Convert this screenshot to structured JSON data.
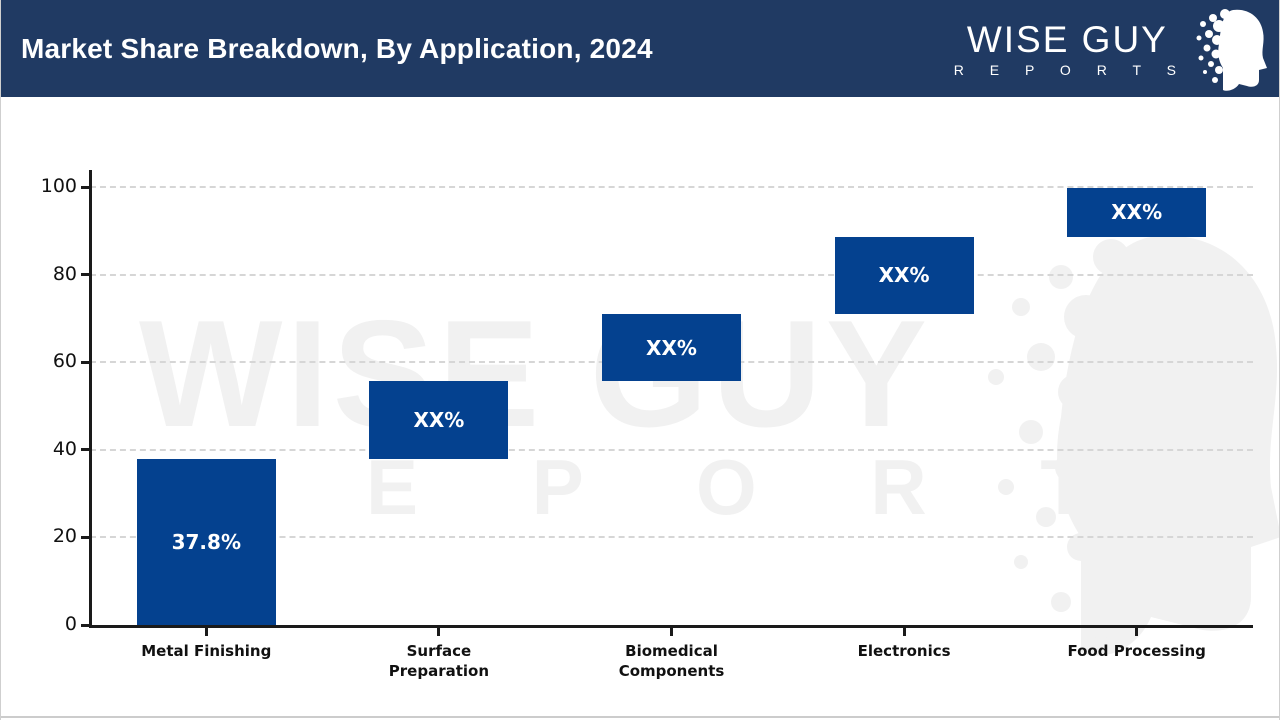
{
  "header": {
    "title": "Market Share Breakdown, By Application, 2024",
    "bg_color": "#203a63",
    "logo": {
      "line1": "WISE GUY",
      "line2": "R E P O R T S"
    }
  },
  "watermark": {
    "line1": "WISE GUY",
    "line2": "R E P O R T S"
  },
  "chart_data": {
    "type": "bar",
    "subtype": "waterfall",
    "title": "Market Share Breakdown, By Application, 2024",
    "categories": [
      "Metal Finishing",
      "Surface Preparation",
      "Biomedical Components",
      "Electronics",
      "Food Processing"
    ],
    "segments": [
      {
        "category": "Metal Finishing",
        "start": 0,
        "end": 37.8,
        "label": "37.8%"
      },
      {
        "category": "Surface Preparation",
        "start": 37.8,
        "end": 55.6,
        "label": "XX%"
      },
      {
        "category": "Biomedical Components",
        "start": 55.6,
        "end": 71.0,
        "label": "XX%"
      },
      {
        "category": "Electronics",
        "start": 71.0,
        "end": 88.6,
        "label": "XX%"
      },
      {
        "category": "Food Processing",
        "start": 88.6,
        "end": 99.8,
        "label": "XX%"
      }
    ],
    "xlabel": "",
    "ylabel": "",
    "ylim": [
      0,
      100
    ],
    "yticks": [
      0,
      20,
      40,
      60,
      80,
      100
    ],
    "grid": "horizontal-dashed",
    "legend": "none",
    "bar_color": "#04418f",
    "bar_label_color": "#ffffff"
  }
}
